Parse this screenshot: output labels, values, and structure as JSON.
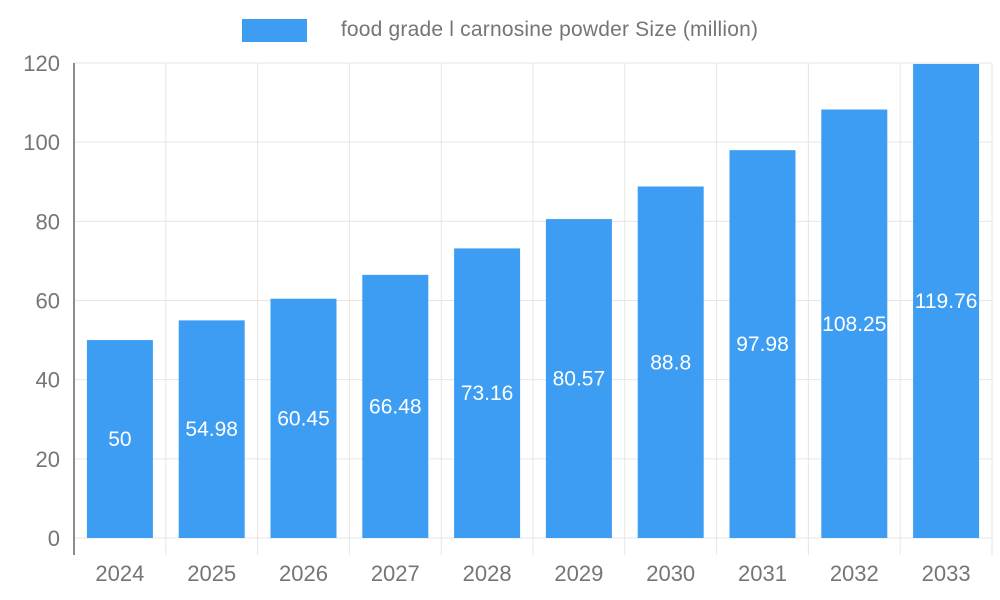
{
  "legend": {
    "label": "food grade l carnosine powder Size (million)"
  },
  "colors": {
    "bar": "#3D9DF3",
    "grid": "#E6E6E6",
    "axis_line": "#8C8C8C",
    "axis_text": "#757575",
    "bar_label": "#FFFFFF",
    "background": "#FFFFFF"
  },
  "chart_data": {
    "type": "bar",
    "title": "",
    "xlabel": "",
    "ylabel": "",
    "categories": [
      "2024",
      "2025",
      "2026",
      "2027",
      "2028",
      "2029",
      "2030",
      "2031",
      "2032",
      "2033"
    ],
    "series": [
      {
        "name": "food grade l carnosine powder Size (million)",
        "values": [
          50,
          54.98,
          60.45,
          66.48,
          73.16,
          80.57,
          88.8,
          97.98,
          108.25,
          119.76
        ]
      }
    ],
    "value_labels": [
      "50",
      "54.98",
      "60.45",
      "66.48",
      "73.16",
      "80.57",
      "88.8",
      "97.98",
      "108.25",
      "119.76"
    ],
    "ylim": [
      0,
      120
    ],
    "yticks": [
      0,
      20,
      40,
      60,
      80,
      100,
      120
    ],
    "grid": true,
    "legend_position": "top",
    "bar_value_labels": "centered-white"
  }
}
